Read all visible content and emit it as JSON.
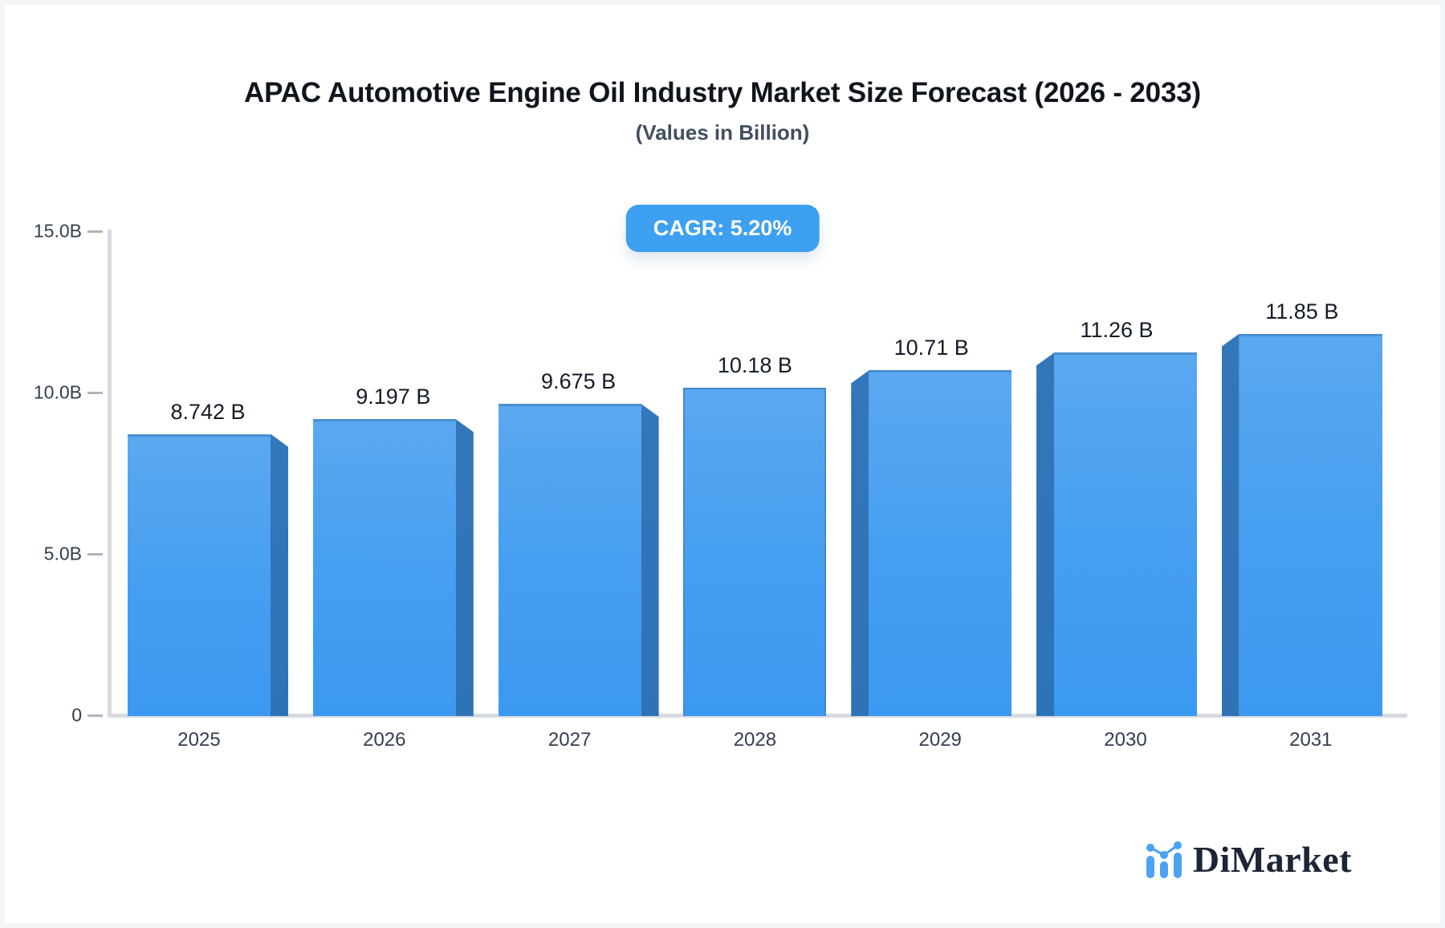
{
  "header": {
    "title": "APAC Automotive Engine Oil Industry Market Size Forecast (2026 - 2033)",
    "subtitle": "(Values in Billion)",
    "cagr_label": "CAGR: 5.20%"
  },
  "chart_data": {
    "type": "bar",
    "title": "APAC Automotive Engine Oil Industry Market Size Forecast (2026 - 2033)",
    "subtitle": "(Values in Billion)",
    "unit": "Billion",
    "cagr": "5.20%",
    "categories": [
      "2025",
      "2026",
      "2027",
      "2028",
      "2029",
      "2030",
      "2031"
    ],
    "values": [
      8.742,
      9.197,
      9.675,
      10.18,
      10.71,
      11.26,
      11.85
    ],
    "value_labels": [
      "8.742 B",
      "9.197 B",
      "9.675 B",
      "10.18 B",
      "10.71 B",
      "11.26 B",
      "11.85 B"
    ],
    "xlabel": "",
    "ylabel": "",
    "ylim": [
      0,
      15
    ],
    "y_tick_values": [
      15,
      10,
      5,
      0
    ],
    "y_tick_labels": [
      "15.0B",
      "10.0B",
      "5.0B",
      "0"
    ],
    "grid": false,
    "legend": false,
    "bar_style": "3d-extruded-perspective"
  },
  "colors": {
    "accent_blue": "#3da0f0",
    "bar_top": "#5aa8f0",
    "bar_bottom": "#3c99f1",
    "bar_side": "#2e73b6",
    "axis_line": "#d7dbe0",
    "text_dark": "#10151d",
    "axis_text": "#333e50"
  },
  "footer": {
    "logo_text": "DiMarket",
    "logo_icon": "bar-chart-with-dots-icon"
  }
}
